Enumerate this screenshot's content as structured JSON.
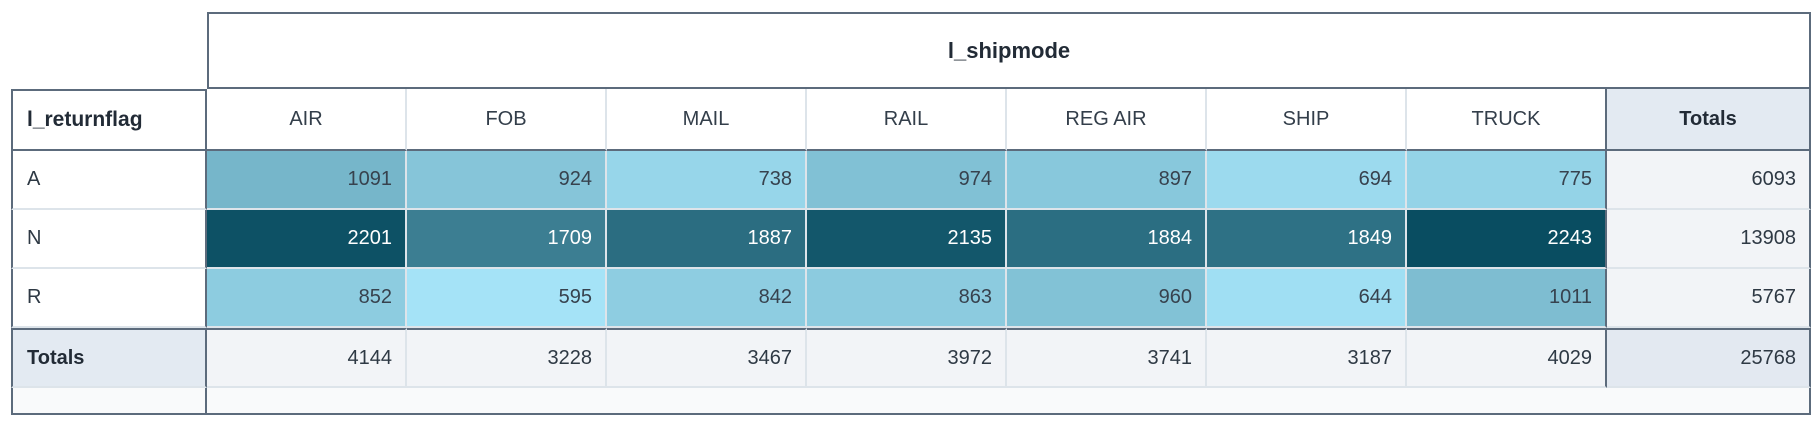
{
  "chart_data": {
    "type": "heatmap",
    "title": "l_shipmode",
    "column_dimension": "l_shipmode",
    "row_dimension": "l_returnflag",
    "totals_label": "Totals",
    "columns": [
      "AIR",
      "FOB",
      "MAIL",
      "RAIL",
      "REG AIR",
      "SHIP",
      "TRUCK"
    ],
    "rows": [
      {
        "label": "A",
        "values": [
          1091,
          924,
          738,
          974,
          897,
          694,
          775
        ],
        "total": 6093
      },
      {
        "label": "N",
        "values": [
          2201,
          1709,
          1887,
          2135,
          1884,
          1849,
          2243
        ],
        "total": 13908
      },
      {
        "label": "R",
        "values": [
          852,
          595,
          842,
          863,
          960,
          644,
          1011
        ],
        "total": 5767
      }
    ],
    "column_totals": [
      4144,
      3228,
      3467,
      3972,
      3741,
      3187,
      4029
    ],
    "grand_total": 25768,
    "heatmap_scale": {
      "min": 595,
      "max": 2243,
      "color_min": "#a5e3f7",
      "color_max": "#094d61",
      "text_on_light": "#37424e",
      "text_on_dark": "#ffffff"
    }
  }
}
